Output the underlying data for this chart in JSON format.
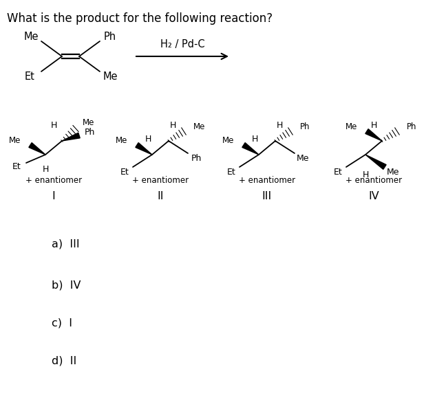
{
  "title": "What is the product for the following reaction?",
  "title_fontsize": 12,
  "bg_color": "#ffffff",
  "text_color": "#000000",
  "answer_options": [
    "a)  III",
    "b)  IV",
    "c)  I",
    "d)  II"
  ],
  "reagent": "H₂ / Pd-C",
  "roman_numerals": [
    "I",
    "II",
    "III",
    "IV"
  ]
}
